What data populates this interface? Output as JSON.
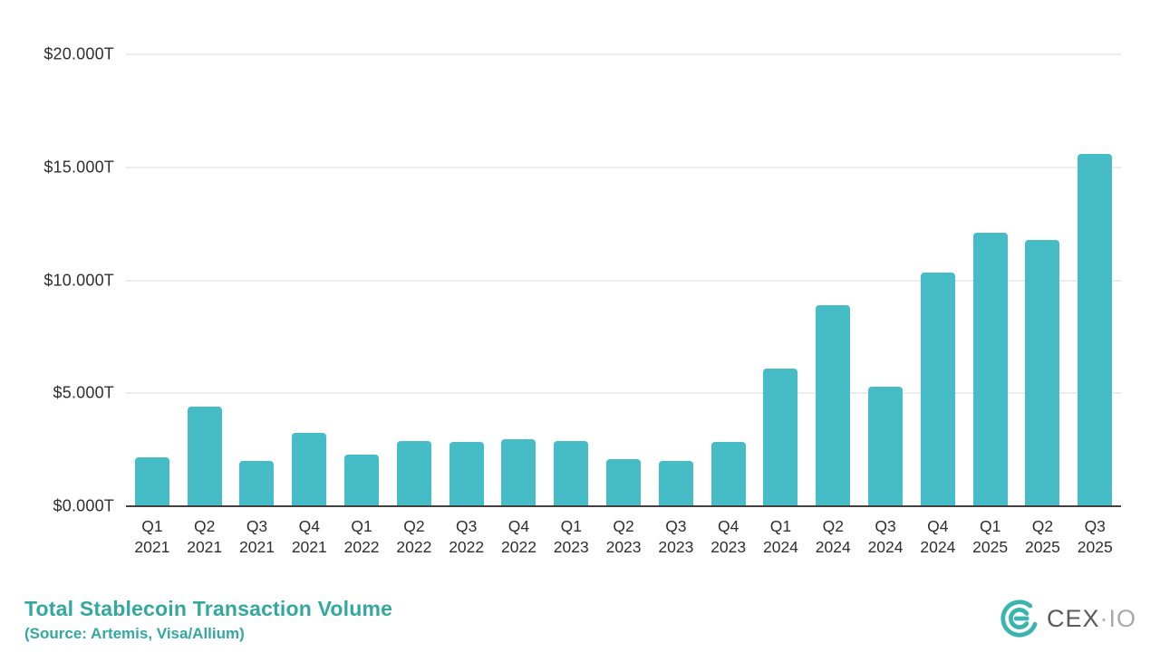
{
  "chart_data": {
    "type": "bar",
    "title": "Total Stablecoin Transaction Volume",
    "subtitle": "(Source: Artemis, Visa/Allium)",
    "xlabel": "",
    "ylabel": "",
    "ylim": [
      0,
      20
    ],
    "grid": true,
    "legend": false,
    "bar_color": "#45BCC6",
    "categories": [
      {
        "quarter": "Q1",
        "year": "2021"
      },
      {
        "quarter": "Q2",
        "year": "2021"
      },
      {
        "quarter": "Q3",
        "year": "2021"
      },
      {
        "quarter": "Q4",
        "year": "2021"
      },
      {
        "quarter": "Q1",
        "year": "2022"
      },
      {
        "quarter": "Q2",
        "year": "2022"
      },
      {
        "quarter": "Q3",
        "year": "2022"
      },
      {
        "quarter": "Q4",
        "year": "2022"
      },
      {
        "quarter": "Q1",
        "year": "2023"
      },
      {
        "quarter": "Q2",
        "year": "2023"
      },
      {
        "quarter": "Q3",
        "year": "2023"
      },
      {
        "quarter": "Q4",
        "year": "2023"
      },
      {
        "quarter": "Q1",
        "year": "2024"
      },
      {
        "quarter": "Q2",
        "year": "2024"
      },
      {
        "quarter": "Q3",
        "year": "2024"
      },
      {
        "quarter": "Q4",
        "year": "2024"
      },
      {
        "quarter": "Q1",
        "year": "2025"
      },
      {
        "quarter": "Q2",
        "year": "2025"
      },
      {
        "quarter": "Q3",
        "year": "2025"
      }
    ],
    "values": [
      2.15,
      4.4,
      2.0,
      3.25,
      2.3,
      2.9,
      2.85,
      2.95,
      2.9,
      2.1,
      2.0,
      2.85,
      6.1,
      8.9,
      5.3,
      10.35,
      12.1,
      11.8,
      15.6
    ],
    "values_unit": "trillions USD",
    "yticks": [
      {
        "value": 20,
        "label": "$20.000T"
      },
      {
        "value": 15,
        "label": "$15.000T"
      },
      {
        "value": 10,
        "label": "$10.000T"
      },
      {
        "value": 5,
        "label": "$5.000T"
      },
      {
        "value": 0,
        "label": "$0.000T"
      }
    ]
  },
  "branding": {
    "logo_main": "CEX",
    "logo_separator": "·",
    "logo_suffix": "IO"
  },
  "colors": {
    "bar": "#45BCC6",
    "grid": "#D9D9D9",
    "axis": "#414141",
    "label": "#2F2F2F",
    "title": "#32A8A0",
    "logo_mark": "#3AB5AD",
    "logo_main": "#595A5E",
    "logo_suffix": "#A7A9AC"
  }
}
